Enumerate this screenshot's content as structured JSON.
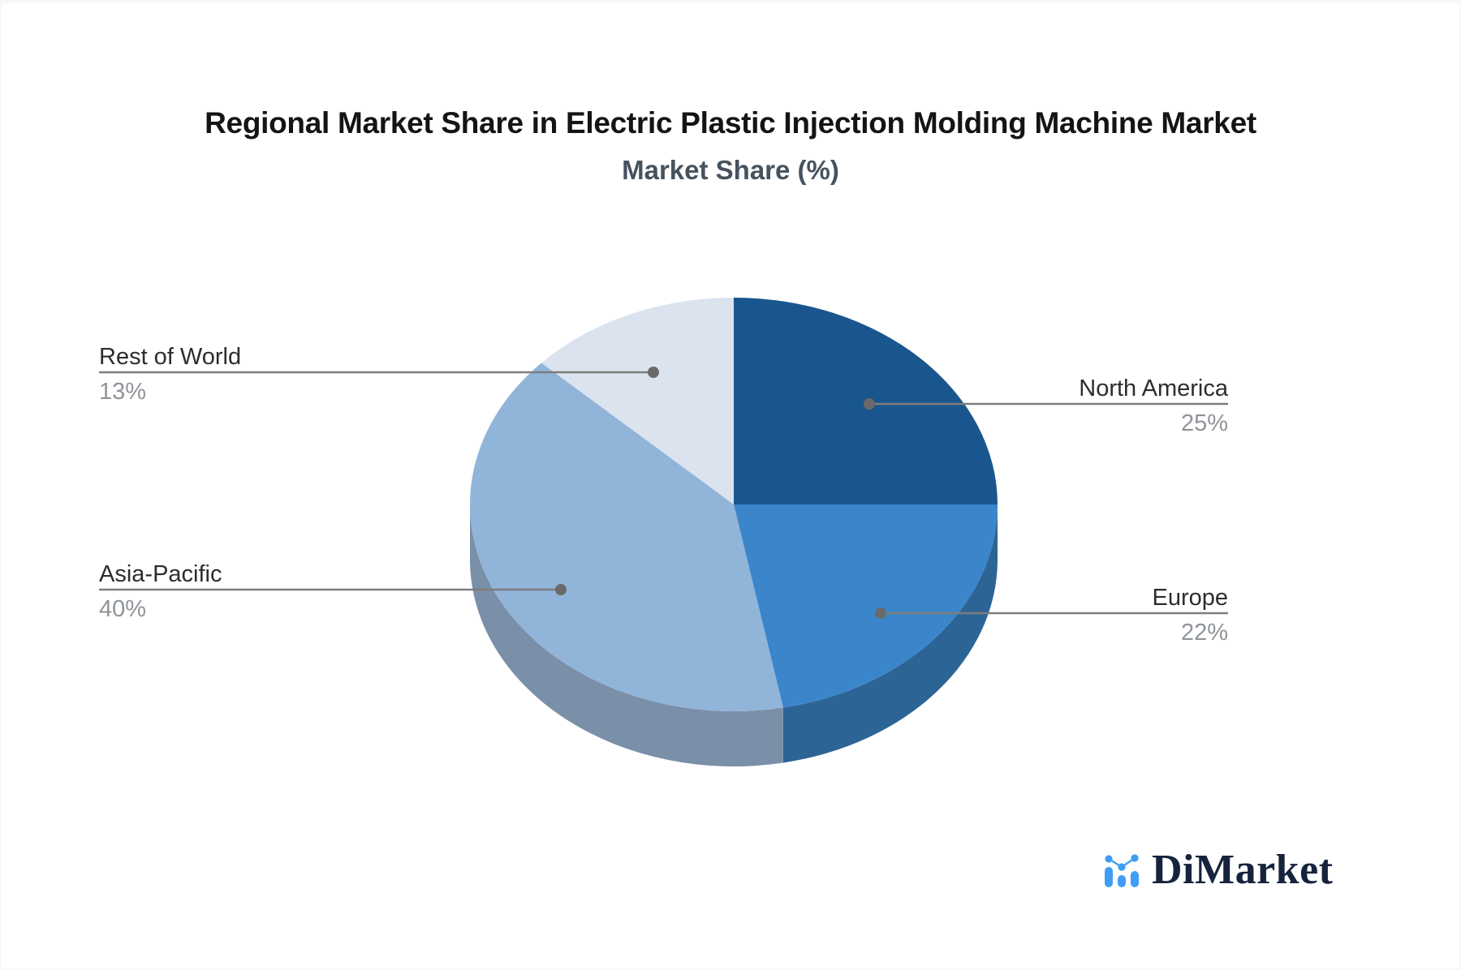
{
  "header": {
    "title": "Regional Market Share in Electric Plastic Injection Molding Machine Market",
    "subtitle": "Market Share (%)"
  },
  "chart_data": {
    "type": "pie",
    "title": "Regional Market Share in Electric Plastic Injection Molding Machine Market",
    "subtitle": "Market Share (%)",
    "unit": "%",
    "start_angle_deg": -90,
    "direction": "clockwise",
    "effect": "3d-depth",
    "slices": [
      {
        "label": "North America",
        "value": 25,
        "display": "25%",
        "color": "#1a568e",
        "side_color": "#144169"
      },
      {
        "label": "Europe",
        "value": 22,
        "display": "22%",
        "color": "#3b86ca",
        "side_color": "#2d6496"
      },
      {
        "label": "Asia-Pacific",
        "value": 40,
        "display": "40%",
        "color": "#91b4d9",
        "side_color": "#7a8fa8"
      },
      {
        "label": "Rest of World",
        "value": 13,
        "display": "13%",
        "color": "#dbe3ef",
        "side_color": "#aab3bf"
      }
    ],
    "legend_position": "callouts",
    "callout_line_color": "#7d7d7d",
    "callout_dot_color": "#6a6a6a",
    "label_color": "#2d2d2d",
    "value_color": "#8f9499"
  },
  "logo": {
    "text": "DiMarket",
    "icon": "bar-line-chart-icon",
    "text_color": "#16233c",
    "icon_color": "#3f9df5"
  }
}
